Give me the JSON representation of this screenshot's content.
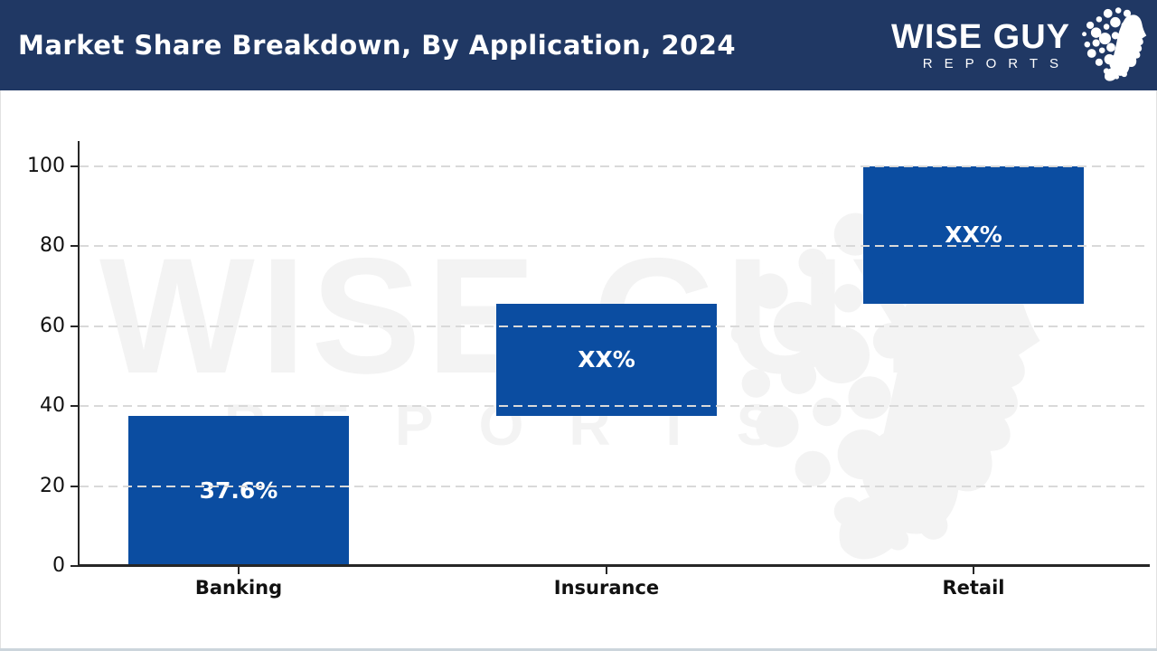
{
  "header": {
    "title": "Market Share Breakdown, By Application, 2024",
    "logo": {
      "line1": "WISE GUY",
      "line2": "REPORTS"
    }
  },
  "watermark": {
    "line1": "WISE GUY",
    "line2": "REPORTS"
  },
  "colors": {
    "header_bg": "#203864",
    "bar_blue": "#0b4da1",
    "bar_label": "#ffffff",
    "gridline": "#d9d9d9",
    "axis": "#262626",
    "watermark": "#f3f3f3",
    "bottom_strip": "#ccd5dc"
  },
  "chart_data": {
    "type": "bar",
    "variant": "floating-waterfall",
    "title": "Market Share Breakdown, By Application, 2024",
    "categories": [
      "Banking",
      "Insurance",
      "Retail"
    ],
    "bars": [
      {
        "category": "Banking",
        "start": 0,
        "end": 37.6,
        "label": "37.6%"
      },
      {
        "category": "Insurance",
        "start": 37.6,
        "end": 65.5,
        "label": "XX%"
      },
      {
        "category": "Retail",
        "start": 65.5,
        "end": 100,
        "label": "XX%"
      }
    ],
    "xlabel": "",
    "ylabel": "",
    "yticks": [
      0,
      20,
      40,
      60,
      80,
      100
    ],
    "ylim": [
      0,
      106
    ],
    "grid": "horizontal dashed, drawn above bars",
    "legend": "none"
  }
}
